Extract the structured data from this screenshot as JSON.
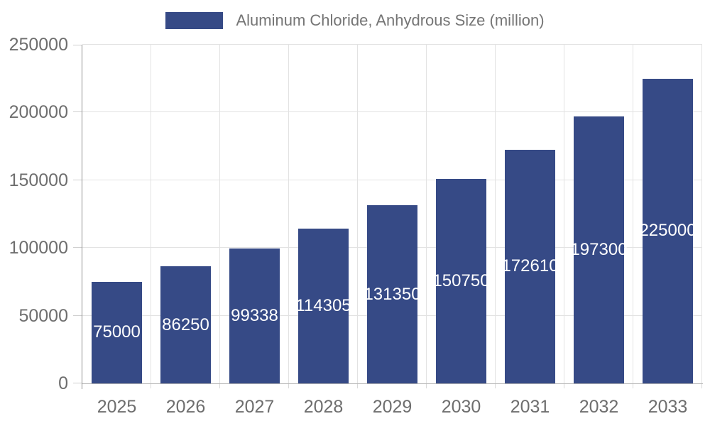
{
  "legend": {
    "label": "Aluminum Chloride, Anhydrous Size (million)"
  },
  "colors": {
    "bar": "#364a86",
    "bar_label": "#ffffff",
    "legend_text": "#757575",
    "axis_text": "#6e6e6e",
    "grid": "#e2e2e2",
    "y_axis_line": "#8f8f8f",
    "x_axis_line": "#b3b3b3",
    "y_tick": "#cfcfcf",
    "x_tick": "#d9d9d9",
    "background": "#ffffff"
  },
  "chart_data": {
    "type": "bar",
    "title": "",
    "series_name": "Aluminum Chloride, Anhydrous Size (million)",
    "categories": [
      "2025",
      "2026",
      "2027",
      "2028",
      "2029",
      "2030",
      "2031",
      "2032",
      "2033"
    ],
    "values": [
      75000,
      86250,
      99338,
      114305,
      131350,
      150750,
      172610,
      197300,
      225000
    ],
    "xlabel": "",
    "ylabel": "",
    "ylim": [
      0,
      250000
    ],
    "yticks": [
      0,
      50000,
      100000,
      150000,
      200000,
      250000
    ],
    "grid": true,
    "legend_position": "top",
    "bar_labels": "inside-center-white"
  }
}
